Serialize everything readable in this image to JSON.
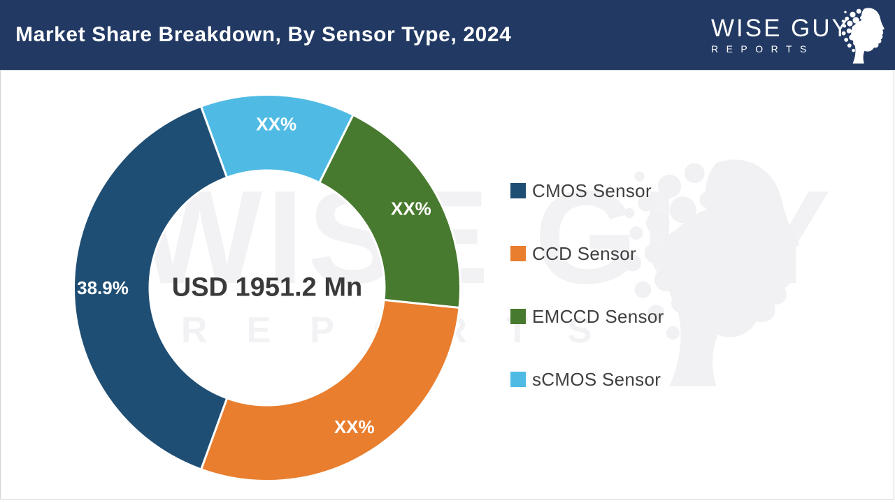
{
  "header": {
    "title": "Market Share Breakdown, By Sensor Type, 2024",
    "bg_color": "#223a63",
    "logo": {
      "line1": "WISE GUY",
      "line2": "REPORTS"
    }
  },
  "chart_data": {
    "type": "pie",
    "subtype": "donut",
    "title": "Market Share Breakdown, By Sensor Type, 2024",
    "center_label": "USD 1951.2 Mn",
    "start_angle_deg": -20,
    "legend_position": "right",
    "slices": [
      {
        "name": "sCMOS Sensor",
        "value_pct": 12.9,
        "label": "XX%",
        "color": "#4fbbe4"
      },
      {
        "name": "EMCCD Sensor",
        "value_pct": 19.3,
        "label": "XX%",
        "color": "#47792e"
      },
      {
        "name": "CCD Sensor",
        "value_pct": 28.9,
        "label": "XX%",
        "color": "#e87e2e"
      },
      {
        "name": "CMOS Sensor",
        "value_pct": 38.9,
        "label": "38.9%",
        "color": "#1f4e74"
      }
    ]
  },
  "legend": {
    "items": [
      {
        "label": "CMOS Sensor",
        "color": "#1f4e74"
      },
      {
        "label": "CCD Sensor",
        "color": "#e87e2e"
      },
      {
        "label": "EMCCD Sensor",
        "color": "#47792e"
      },
      {
        "label": "sCMOS Sensor",
        "color": "#4fbbe4"
      }
    ]
  },
  "watermark": {
    "line1": "WISE GUY",
    "line2": "REPORTS"
  }
}
